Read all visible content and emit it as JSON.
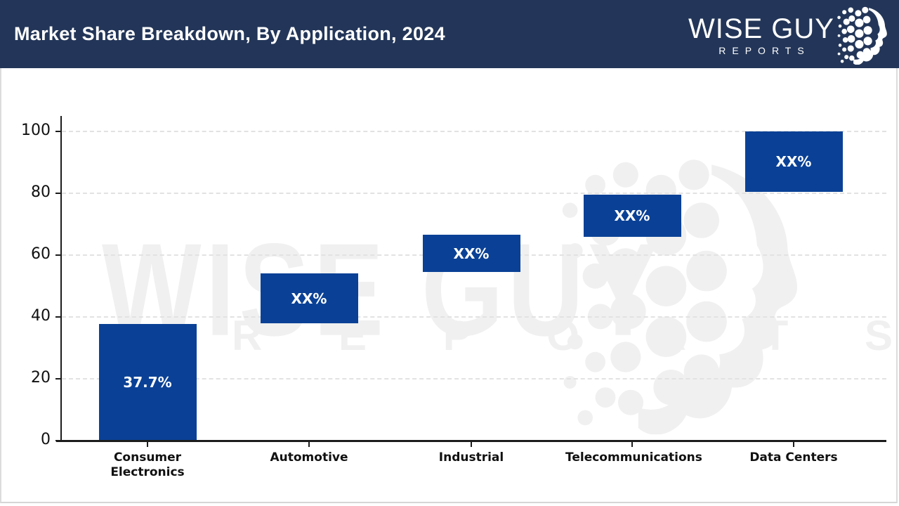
{
  "header": {
    "title": "Market Share Breakdown, By Application, 2024",
    "bg_color": "#233659",
    "brand": {
      "line1": "WISE GUY",
      "line2": "REPORTS"
    }
  },
  "watermark": {
    "line1": "WISE GUY",
    "line2": "R E P O R T S"
  },
  "chart_data": {
    "type": "bar",
    "subtype": "waterfall",
    "title": "Market Share Breakdown, By Application, 2024",
    "value_unit": "%",
    "categories": [
      "Consumer Electronics",
      "Automotive",
      "Industrial",
      "Telecommunications",
      "Data Centers"
    ],
    "segments": [
      {
        "category": "Consumer Electronics",
        "start": 0,
        "end": 37.7,
        "label": "37.7%"
      },
      {
        "category": "Automotive",
        "start": 38,
        "end": 54,
        "label": "XX%"
      },
      {
        "category": "Industrial",
        "start": 54.5,
        "end": 66.5,
        "label": "XX%"
      },
      {
        "category": "Telecommunications",
        "start": 66,
        "end": 79.5,
        "label": "XX%"
      },
      {
        "category": "Data Centers",
        "start": 80.5,
        "end": 100,
        "label": "XX%"
      }
    ],
    "yticks": [
      0,
      20,
      40,
      60,
      80,
      100
    ],
    "ylim": [
      0,
      105
    ],
    "bar_color": "#0A4196",
    "grid": "dashed-horizontal",
    "legend": "none"
  }
}
